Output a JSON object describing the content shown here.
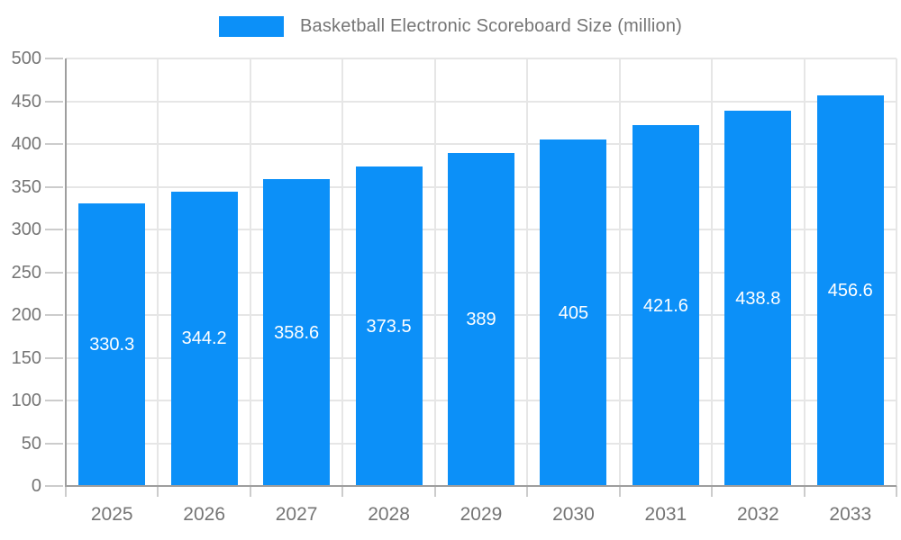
{
  "chart_data": {
    "type": "bar",
    "title": "Basketball Electronic Scoreboard Size (million)",
    "legend_entries": [
      "Basketball Electronic Scoreboard Size (million)"
    ],
    "legend_position": "top",
    "categories": [
      "2025",
      "2026",
      "2027",
      "2028",
      "2029",
      "2030",
      "2031",
      "2032",
      "2033"
    ],
    "series": [
      {
        "name": "Basketball Electronic Scoreboard Size (million)",
        "values": [
          330.3,
          344.2,
          358.6,
          373.5,
          389,
          405,
          421.6,
          438.8,
          456.6
        ]
      }
    ],
    "value_labels": [
      "330.3",
      "344.2",
      "358.6",
      "373.5",
      "389",
      "405",
      "421.6",
      "438.8",
      "456.6"
    ],
    "xlabel": "",
    "ylabel": "",
    "ylim": [
      0,
      500
    ],
    "ytick_step": 50,
    "yticks": [
      0,
      50,
      100,
      150,
      200,
      250,
      300,
      350,
      400,
      450,
      500
    ],
    "grid": "on",
    "colors": {
      "bar": "#0C90F8",
      "bar_value_text": "#ffffff",
      "axis_text": "#757575",
      "axis_line": "#9e9e9e",
      "gridline": "#e6e6e6",
      "tick": "#cccccc",
      "background": "#ffffff"
    }
  }
}
